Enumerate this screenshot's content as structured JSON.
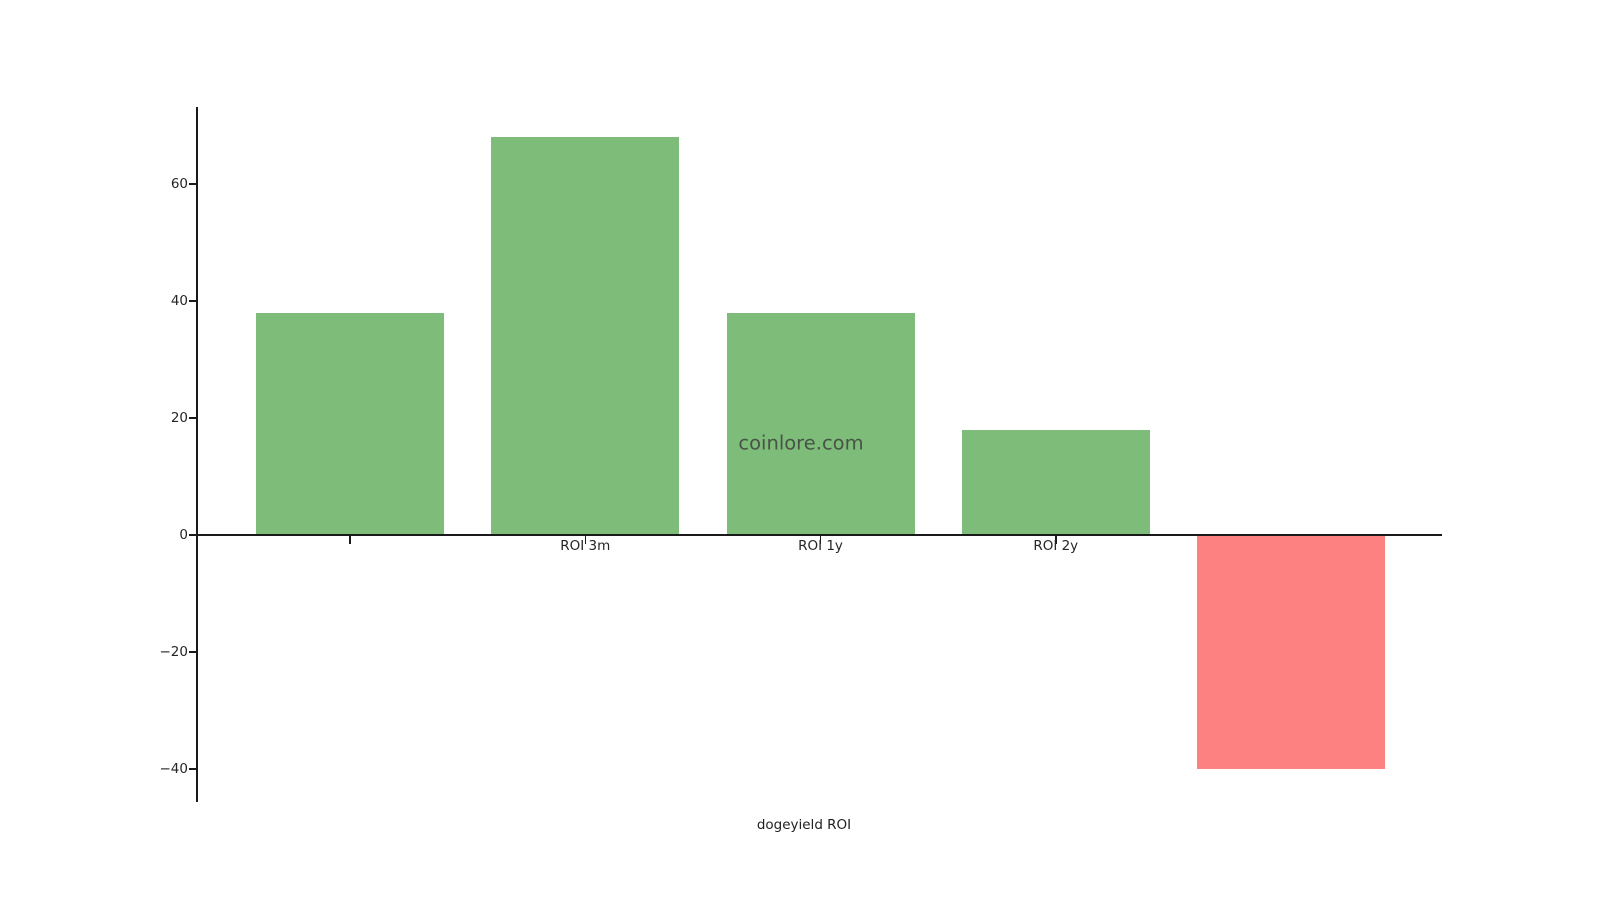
{
  "chart_data": {
    "type": "bar",
    "xlabel": "dogeyield ROI",
    "watermark": "coinlore.com",
    "categories": [
      "",
      "ROI 3m",
      "ROI 1y",
      "ROI 2y",
      ""
    ],
    "values": [
      38,
      68,
      38,
      18,
      -40
    ],
    "xtick_visible": [
      true,
      true,
      true,
      true,
      false
    ],
    "yticks": [
      60,
      40,
      20,
      0,
      -20,
      -40
    ],
    "ytick_labels": [
      "60",
      "40",
      "20",
      "0",
      "−20",
      "−40"
    ],
    "ylim": [
      -45.6,
      73.2
    ],
    "grid": false,
    "legend": false,
    "colors": {
      "positive": "#7dbd79",
      "negative": "#fd8181",
      "axis": "#1a1a1a",
      "tick_label": "#262626",
      "watermark": "#404040"
    }
  }
}
